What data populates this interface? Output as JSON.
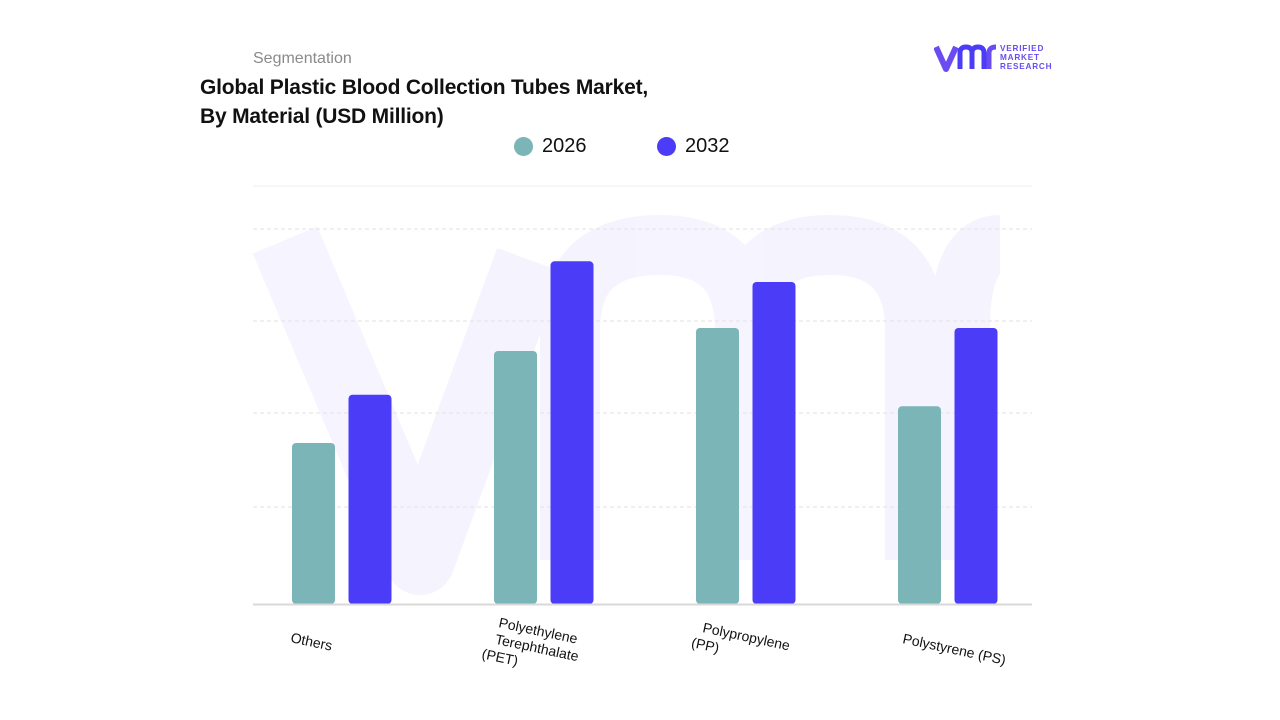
{
  "header": {
    "segment_label": "Segmentation",
    "title_line1": "Global  Plastic Blood Collection Tubes Market,",
    "title_line2": "By Material (USD Million)"
  },
  "logo": {
    "line1": "VERIFIED",
    "line2": "MARKET",
    "line3": "RESEARCH",
    "color": "#6a4cf0"
  },
  "chart_data": {
    "type": "bar",
    "categories": [
      "Others",
      "Polyethylene Terephthalate (PET)",
      "Polypropylene (PP)",
      "Polystyrene (PS)"
    ],
    "category_label_lines": [
      [
        "Others"
      ],
      [
        "Polyethylene",
        "Terephthalate",
        "(PET)"
      ],
      [
        "Polypropylene",
        "(PP)"
      ],
      [
        "Polystyrene (PS)"
      ]
    ],
    "series": [
      {
        "name": "2026",
        "color": "#7bb5b7",
        "values": [
          35,
          55,
          60,
          43
        ]
      },
      {
        "name": "2032",
        "color": "#4b3cf7",
        "values": [
          45.5,
          74.5,
          70,
          60
        ]
      }
    ],
    "ylim": [
      0,
      90
    ],
    "grid": true,
    "y_tick_labels_shown": false,
    "legend_position": "top-center",
    "title": "Global  Plastic Blood Collection Tubes Market, By Material (USD Million)"
  }
}
